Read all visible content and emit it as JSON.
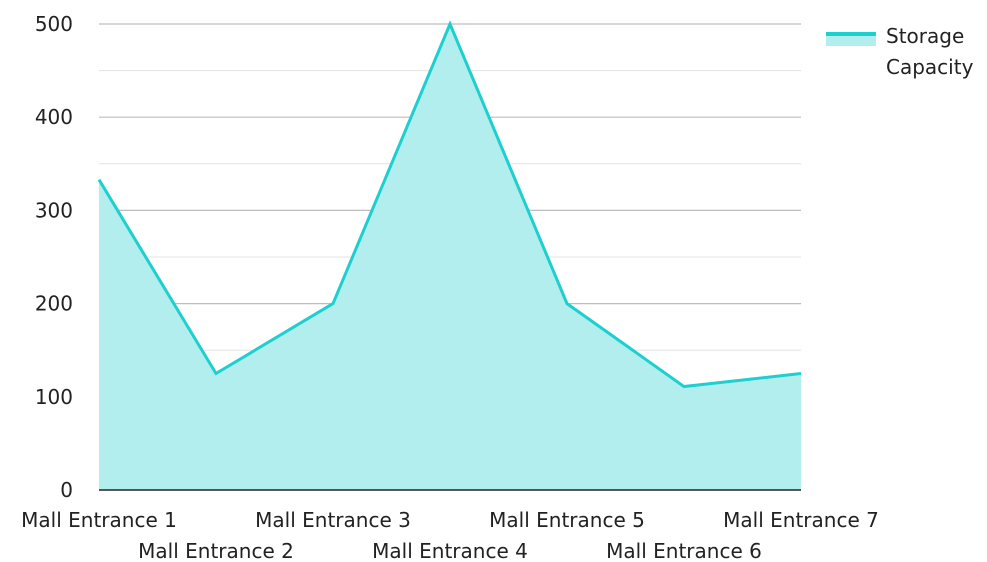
{
  "chart_data": {
    "type": "area",
    "categories": [
      "Mall Entrance 1",
      "Mall Entrance 2",
      "Mall Entrance 3",
      "Mall Entrance 4",
      "Mall Entrance 5",
      "Mall Entrance 6",
      "Mall Entrance 7"
    ],
    "series": [
      {
        "name": "Storage Capacity",
        "values": [
          333,
          125,
          200,
          500,
          200,
          111,
          125
        ]
      }
    ],
    "legend_lines": [
      "Storage",
      "Capacity"
    ],
    "ylim": [
      0,
      500
    ],
    "yticks": [
      0,
      100,
      200,
      300,
      400,
      500
    ],
    "grid": true,
    "legend_position": "top-right",
    "colors": {
      "line": "#1ecfcf",
      "fill": "#b2eeee",
      "grid_major": "#bdbdbd",
      "grid_minor": "#e3e3e3",
      "axis": "#222222"
    }
  }
}
